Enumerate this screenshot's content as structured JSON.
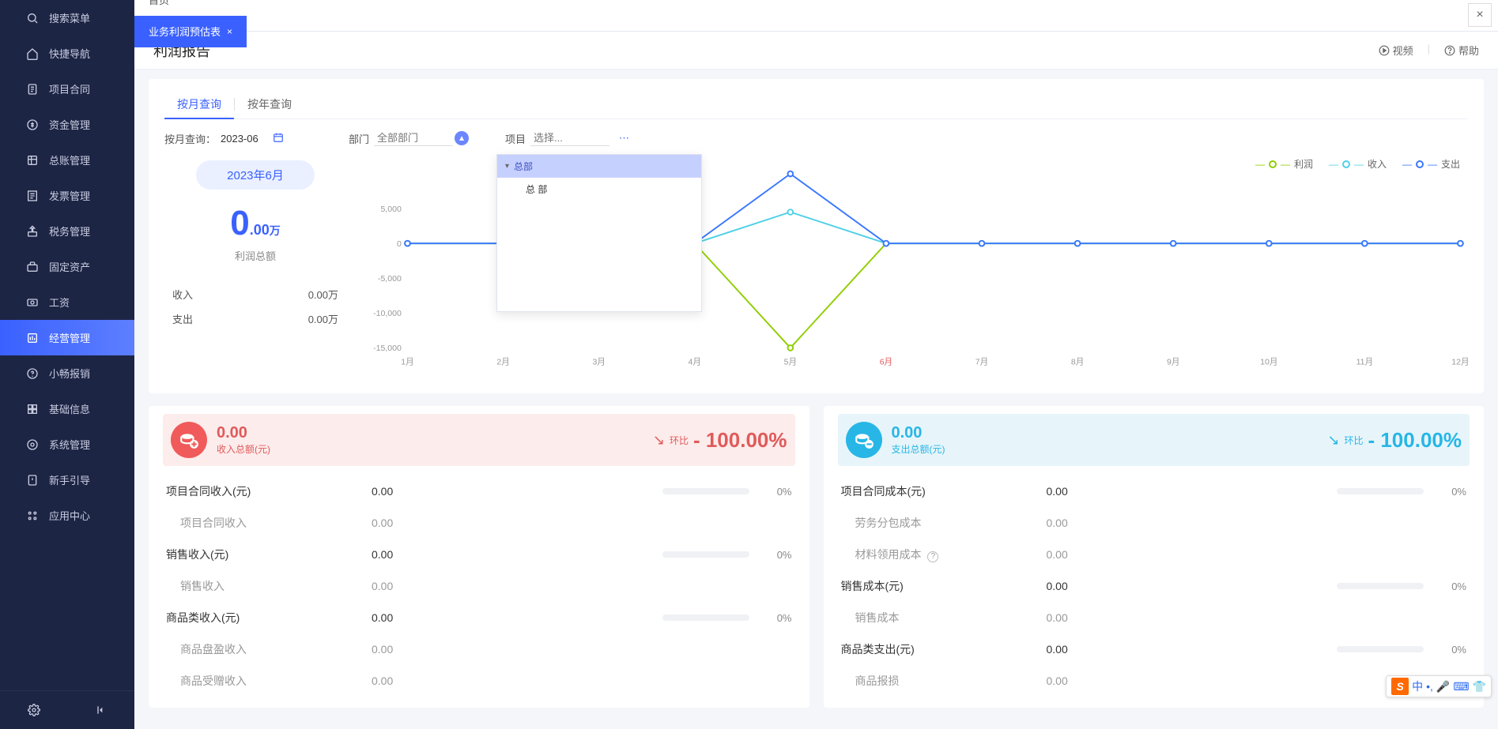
{
  "sidebar": {
    "items": [
      {
        "label": "搜索菜单",
        "icon": "search"
      },
      {
        "label": "快捷导航",
        "icon": "home"
      },
      {
        "label": "项目合同",
        "icon": "doc"
      },
      {
        "label": "资金管理",
        "icon": "money"
      },
      {
        "label": "总账管理",
        "icon": "ledger"
      },
      {
        "label": "发票管理",
        "icon": "invoice"
      },
      {
        "label": "税务管理",
        "icon": "tax"
      },
      {
        "label": "固定资产",
        "icon": "asset"
      },
      {
        "label": "工资",
        "icon": "salary"
      },
      {
        "label": "经营管理",
        "icon": "biz",
        "active": true
      },
      {
        "label": "小畅报销",
        "icon": "reimburse"
      },
      {
        "label": "基础信息",
        "icon": "base"
      },
      {
        "label": "系统管理",
        "icon": "system"
      },
      {
        "label": "新手引导",
        "icon": "guide"
      },
      {
        "label": "应用中心",
        "icon": "apps"
      }
    ]
  },
  "tabs": [
    {
      "label": "首页",
      "closable": false,
      "active": false
    },
    {
      "label": "业务利润预估表",
      "closable": true,
      "active": true
    }
  ],
  "page": {
    "title": "利润报告",
    "video": "视频",
    "help": "帮助"
  },
  "subtabs": [
    {
      "label": "按月查询",
      "active": true
    },
    {
      "label": "按年查询",
      "active": false
    }
  ],
  "filters": {
    "monthly_label": "按月查询：",
    "month_value": "2023-06",
    "dept_label": "部门",
    "dept_placeholder": "全部部门",
    "project_label": "项目",
    "project_placeholder": "选择..."
  },
  "dept_dropdown": {
    "items": [
      {
        "label": "总部",
        "expandable": true,
        "highlight": true
      },
      {
        "label": "总 部",
        "indent": true
      }
    ]
  },
  "summary": {
    "month_display": "2023年6月",
    "big_int": "0",
    "big_dec": ".00",
    "big_unit": "万",
    "profit_label": "利润总额",
    "income_label": "收入",
    "income_value": "0.00万",
    "expense_label": "支出",
    "expense_value": "0.00万"
  },
  "chart": {
    "legend": [
      {
        "label": "利润",
        "color": "#8fce00"
      },
      {
        "label": "收入",
        "color": "#4fd0e7"
      },
      {
        "label": "支出",
        "color": "#3a77ff"
      }
    ],
    "y_ticks": [
      {
        "v": 5000,
        "lbl": "5,000"
      },
      {
        "v": 0,
        "lbl": "0"
      },
      {
        "v": -5000,
        "lbl": "-5,000"
      },
      {
        "v": -10000,
        "lbl": "-10,000"
      },
      {
        "v": -15000,
        "lbl": "-15,000"
      }
    ],
    "y_min": -15000,
    "y_max": 10000,
    "x_labels": [
      "1月",
      "2月",
      "3月",
      "4月",
      "5月",
      "6月",
      "7月",
      "8月",
      "9月",
      "10月",
      "11月",
      "12月"
    ],
    "current_x_index": 5,
    "series": {
      "profit": {
        "color": "#8fce00",
        "values": [
          0,
          0,
          0,
          0,
          -15000,
          0,
          0,
          0,
          0,
          0,
          0,
          0
        ]
      },
      "income": {
        "color": "#4fd0e7",
        "values": [
          0,
          0,
          0,
          0,
          4500,
          0,
          0,
          0,
          0,
          0,
          0,
          0
        ]
      },
      "expense": {
        "color": "#3a77ff",
        "values": [
          0,
          0,
          0,
          0,
          10000,
          0,
          0,
          0,
          0,
          0,
          0,
          0
        ]
      }
    }
  },
  "income_card": {
    "banner_value": "0.00",
    "banner_label": "收入总额(元)",
    "hb_label": "环比",
    "pct": "- 100.00%",
    "rows": [
      {
        "name": "项目合同收入(元)",
        "value": "0.00",
        "pct": "0%",
        "sub": false
      },
      {
        "name": "项目合同收入",
        "value": "0.00",
        "pct": "",
        "sub": true
      },
      {
        "name": "销售收入(元)",
        "value": "0.00",
        "pct": "0%",
        "sub": false
      },
      {
        "name": "销售收入",
        "value": "0.00",
        "pct": "",
        "sub": true
      },
      {
        "name": "商品类收入(元)",
        "value": "0.00",
        "pct": "0%",
        "sub": false
      },
      {
        "name": "商品盘盈收入",
        "value": "0.00",
        "pct": "",
        "sub": true
      },
      {
        "name": "商品受赠收入",
        "value": "0.00",
        "pct": "",
        "sub": true
      }
    ]
  },
  "expense_card": {
    "banner_value": "0.00",
    "banner_label": "支出总额(元)",
    "hb_label": "环比",
    "pct": "- 100.00%",
    "rows": [
      {
        "name": "项目合同成本(元)",
        "value": "0.00",
        "pct": "0%",
        "sub": false
      },
      {
        "name": "劳务分包成本",
        "value": "0.00",
        "pct": "",
        "sub": true
      },
      {
        "name": "材料领用成本",
        "value": "0.00",
        "pct": "",
        "sub": true,
        "info": true
      },
      {
        "name": "销售成本(元)",
        "value": "0.00",
        "pct": "0%",
        "sub": false
      },
      {
        "name": "销售成本",
        "value": "0.00",
        "pct": "",
        "sub": true
      },
      {
        "name": "商品类支出(元)",
        "value": "0.00",
        "pct": "0%",
        "sub": false
      },
      {
        "name": "商品报损",
        "value": "0.00",
        "pct": "",
        "sub": true
      }
    ]
  },
  "colors": {
    "sidebar_bg": "#1d2545",
    "primary": "#3a61ff",
    "income": "#e05a5a",
    "expense": "#27b6e6"
  }
}
